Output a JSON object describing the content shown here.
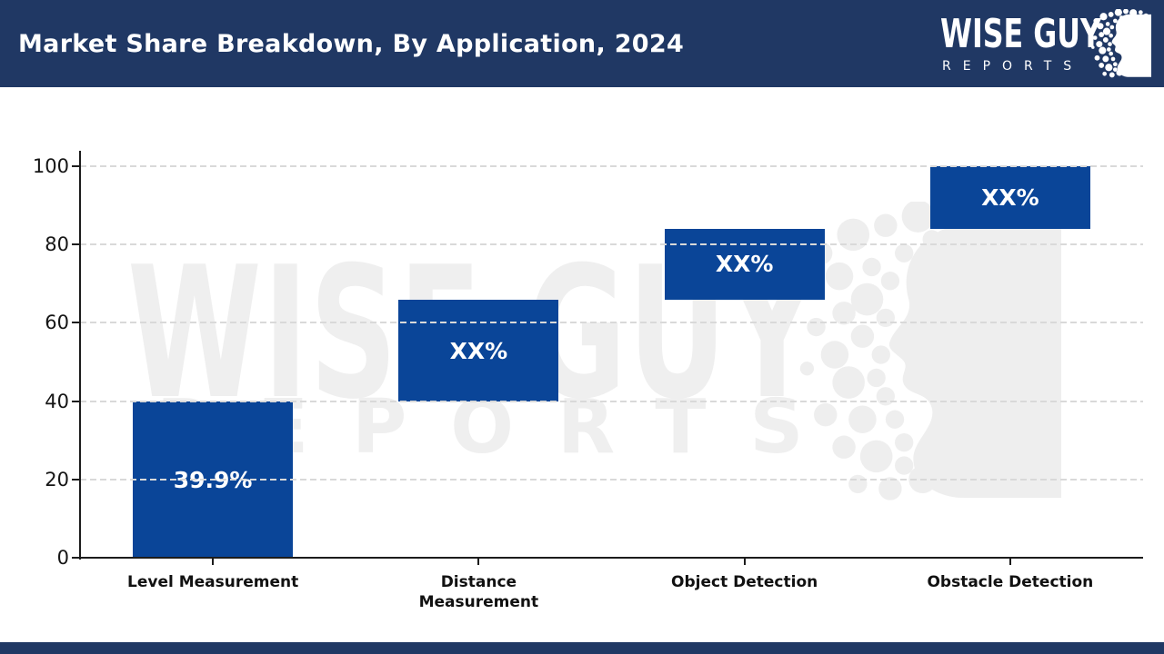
{
  "header": {
    "title": "Market Share Breakdown, By Application, 2024",
    "bg_color": "#203864",
    "logo": {
      "line1": "WISE GUY",
      "line2": "REPORTS"
    }
  },
  "footer": {
    "bg_color": "#203864"
  },
  "watermark": {
    "line1": "WISE GUY",
    "line2": "REPORTS",
    "color": "#efefef"
  },
  "chart_data": {
    "type": "bar",
    "subtype": "waterfall",
    "title": "Market Share Breakdown, By Application, 2024",
    "categories": [
      "Level Measurement",
      "Distance\nMeasurement",
      "Object Detection",
      "Obstacle Detection"
    ],
    "segments": [
      {
        "category": "Level Measurement",
        "start": 0,
        "end": 39.9,
        "value": 39.9,
        "label": "39.9%"
      },
      {
        "category": "Distance Measurement",
        "start": 39.9,
        "end": 65.8,
        "value": 25.9,
        "label": "XX%"
      },
      {
        "category": "Object Detection",
        "start": 65.8,
        "end": 84.1,
        "value": 18.3,
        "label": "XX%"
      },
      {
        "category": "Obstacle Detection",
        "start": 84.1,
        "end": 100,
        "value": 15.9,
        "label": "XX%"
      }
    ],
    "yticks": [
      0,
      20,
      40,
      60,
      80,
      100
    ],
    "ylim": [
      0,
      104
    ],
    "xlabel": "",
    "ylabel": "",
    "grid": "horizontal-dashed",
    "legend": false,
    "bar_color": "#0a4598",
    "bar_label_color": "#ffffff",
    "axis_color": "#1c1c1c",
    "gridline_color": "#d9d9d9"
  }
}
